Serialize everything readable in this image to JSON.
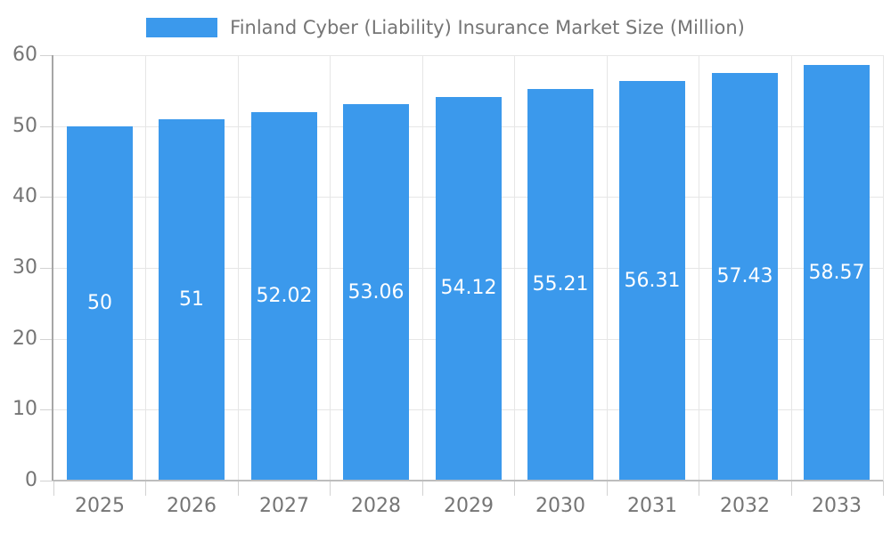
{
  "legend": {
    "label": "Finland Cyber (Liability) Insurance Market Size (Million)"
  },
  "chart_data": {
    "type": "bar",
    "title": "Finland Cyber (Liability) Insurance Market Size (Million)",
    "categories": [
      "2025",
      "2026",
      "2027",
      "2028",
      "2029",
      "2030",
      "2031",
      "2032",
      "2033"
    ],
    "values": [
      50,
      51,
      52.02,
      53.06,
      54.12,
      55.21,
      56.31,
      57.43,
      58.57
    ],
    "bar_labels": [
      "50",
      "51",
      "52.02",
      "53.06",
      "54.12",
      "55.21",
      "56.31",
      "57.43",
      "58.57"
    ],
    "xlabel": "",
    "ylabel": "",
    "ylim": [
      0,
      60
    ],
    "yticks": [
      0,
      10,
      20,
      30,
      40,
      50,
      60
    ],
    "grid": true,
    "legend_position": "top",
    "colors": {
      "bar": "#3B99EC",
      "bar_label": "#ffffff",
      "grid": "#e6e6e6",
      "tick": "#d2d2d2",
      "y_axis_line": "#a6a6a6",
      "x_axis_line": "#bdbdbd",
      "text": "#757575",
      "background": "#ffffff"
    }
  }
}
